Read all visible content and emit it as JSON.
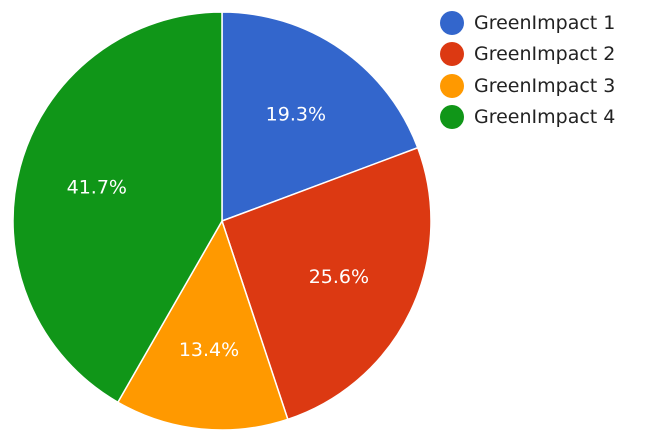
{
  "chart_data": {
    "type": "pie",
    "labels": [
      "GreenImpact 1",
      "GreenImpact 2",
      "GreenImpact 3",
      "GreenImpact 4"
    ],
    "values": [
      19.3,
      25.6,
      13.4,
      41.7
    ],
    "value_labels": [
      "19.3%",
      "25.6%",
      "13.4%",
      "41.7%"
    ],
    "colors": [
      "#3366cc",
      "#dc3912",
      "#ff9900",
      "#109618"
    ],
    "start_angle_deg": 0,
    "direction": "clockwise",
    "legend_position": "right"
  }
}
